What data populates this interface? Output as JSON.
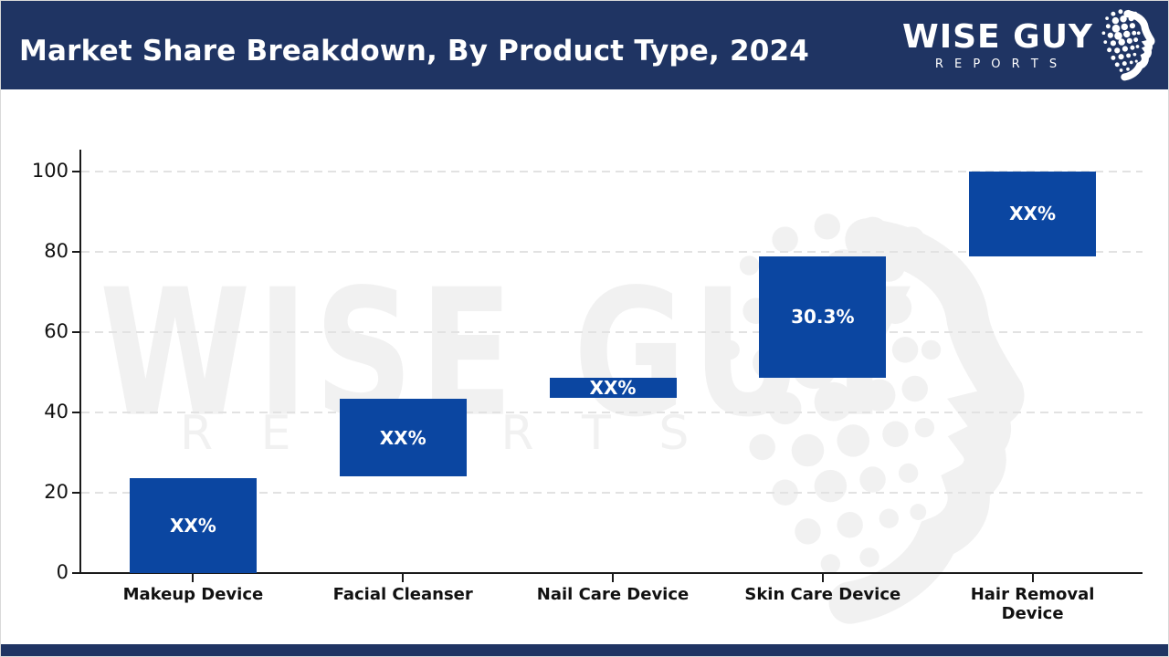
{
  "header": {
    "title": "Market Share Breakdown, By Product Type, 2024",
    "logo": {
      "brand": "WISE GUY",
      "sub": "R E P O R T S"
    }
  },
  "watermark": {
    "brand": "WISE GUY",
    "sub": "R E P O R T S"
  },
  "colors": {
    "header_bg": "#1F3463",
    "bar_fill": "#0B46A1",
    "bar_label_text": "#FFFFFF",
    "title_text": "#FFFFFF",
    "grid": "#E2E2E2",
    "axis": "#1A1A1A",
    "tick_text": "#111111",
    "watermark": "#F1F1F1",
    "page_border": "#D9D9D9"
  },
  "chart_data": {
    "type": "bar",
    "variant": "waterfall",
    "title": "Market Share Breakdown, By Product Type, 2024",
    "xlabel": "",
    "ylabel": "",
    "ylim": [
      0,
      100
    ],
    "yticks": [
      0,
      20,
      40,
      60,
      80,
      100
    ],
    "grid": "horizontal-dashed",
    "legend": "none",
    "categories": [
      "Makeup Device",
      "Facial Cleanser",
      "Nail Care Device",
      "Skin Care Device",
      "Hair Removal Device"
    ],
    "segments": [
      {
        "category": "Makeup Device",
        "start": 0,
        "end": 23.6,
        "label": "XX%"
      },
      {
        "category": "Facial Cleanser",
        "start": 24,
        "end": 43.4,
        "label": "XX%"
      },
      {
        "category": "Nail Care Device",
        "start": 43.6,
        "end": 48.6,
        "label": "XX%"
      },
      {
        "category": "Skin Care Device",
        "start": 48.6,
        "end": 78.9,
        "label": "30.3%"
      },
      {
        "category": "Hair Removal Device",
        "start": 78.9,
        "end": 100,
        "label": "XX%"
      }
    ]
  }
}
